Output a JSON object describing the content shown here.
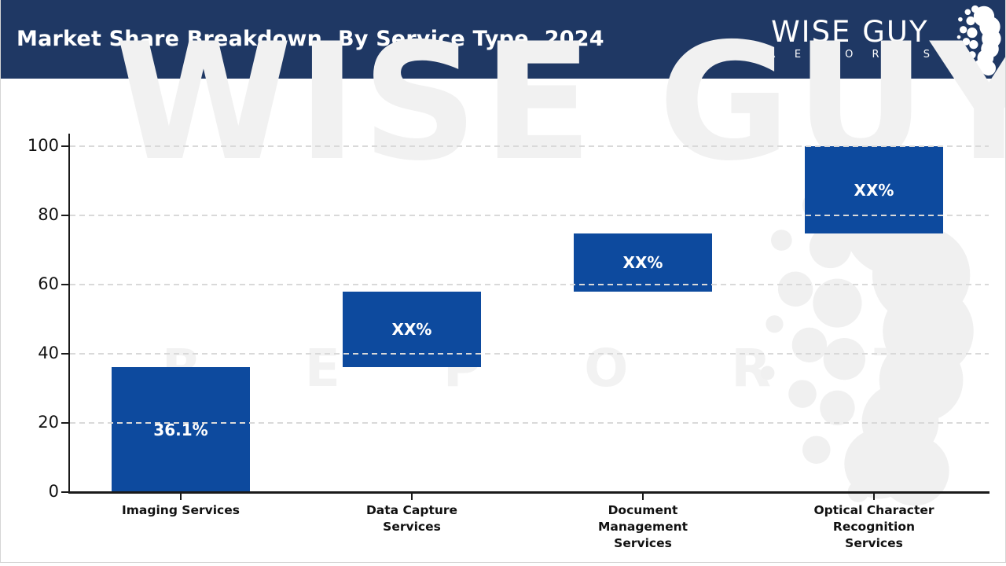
{
  "header": {
    "title": "Market Share Breakdown, By Service Type, 2024",
    "background_color": "#1f3864",
    "logo": {
      "wordmark": "WISE GUY",
      "reports_line": "R E P O R T S"
    }
  },
  "watermark": {
    "wordmark": "WISE GUY",
    "reports_line": "R E P O R T S"
  },
  "chart_data": {
    "type": "bar",
    "subtype": "waterfall",
    "title": "Market Share Breakdown, By Service Type, 2024",
    "xlabel": "",
    "ylabel": "",
    "ylim": [
      0,
      100
    ],
    "y_ticks": [
      0,
      20,
      40,
      60,
      80,
      100
    ],
    "grid": "horizontal dashed, drawn over bars",
    "bar_color": "#0d4a9e",
    "categories": [
      [
        "Imaging Services"
      ],
      [
        "Data Capture",
        "Services"
      ],
      [
        "Document",
        "Management",
        "Services"
      ],
      [
        "Optical Character",
        "Recognition",
        "Services"
      ]
    ],
    "segments": [
      {
        "category": "Imaging Services",
        "start": 0,
        "end": 36.1,
        "label": "36.1%"
      },
      {
        "category": "Data Capture Services",
        "start": 36.1,
        "end": 58.0,
        "label": "XX%"
      },
      {
        "category": "Document Management Services",
        "start": 58.0,
        "end": 74.7,
        "label": "XX%"
      },
      {
        "category": "Optical Character Recognition Services",
        "start": 74.7,
        "end": 100.0,
        "label": "XX%"
      }
    ]
  }
}
